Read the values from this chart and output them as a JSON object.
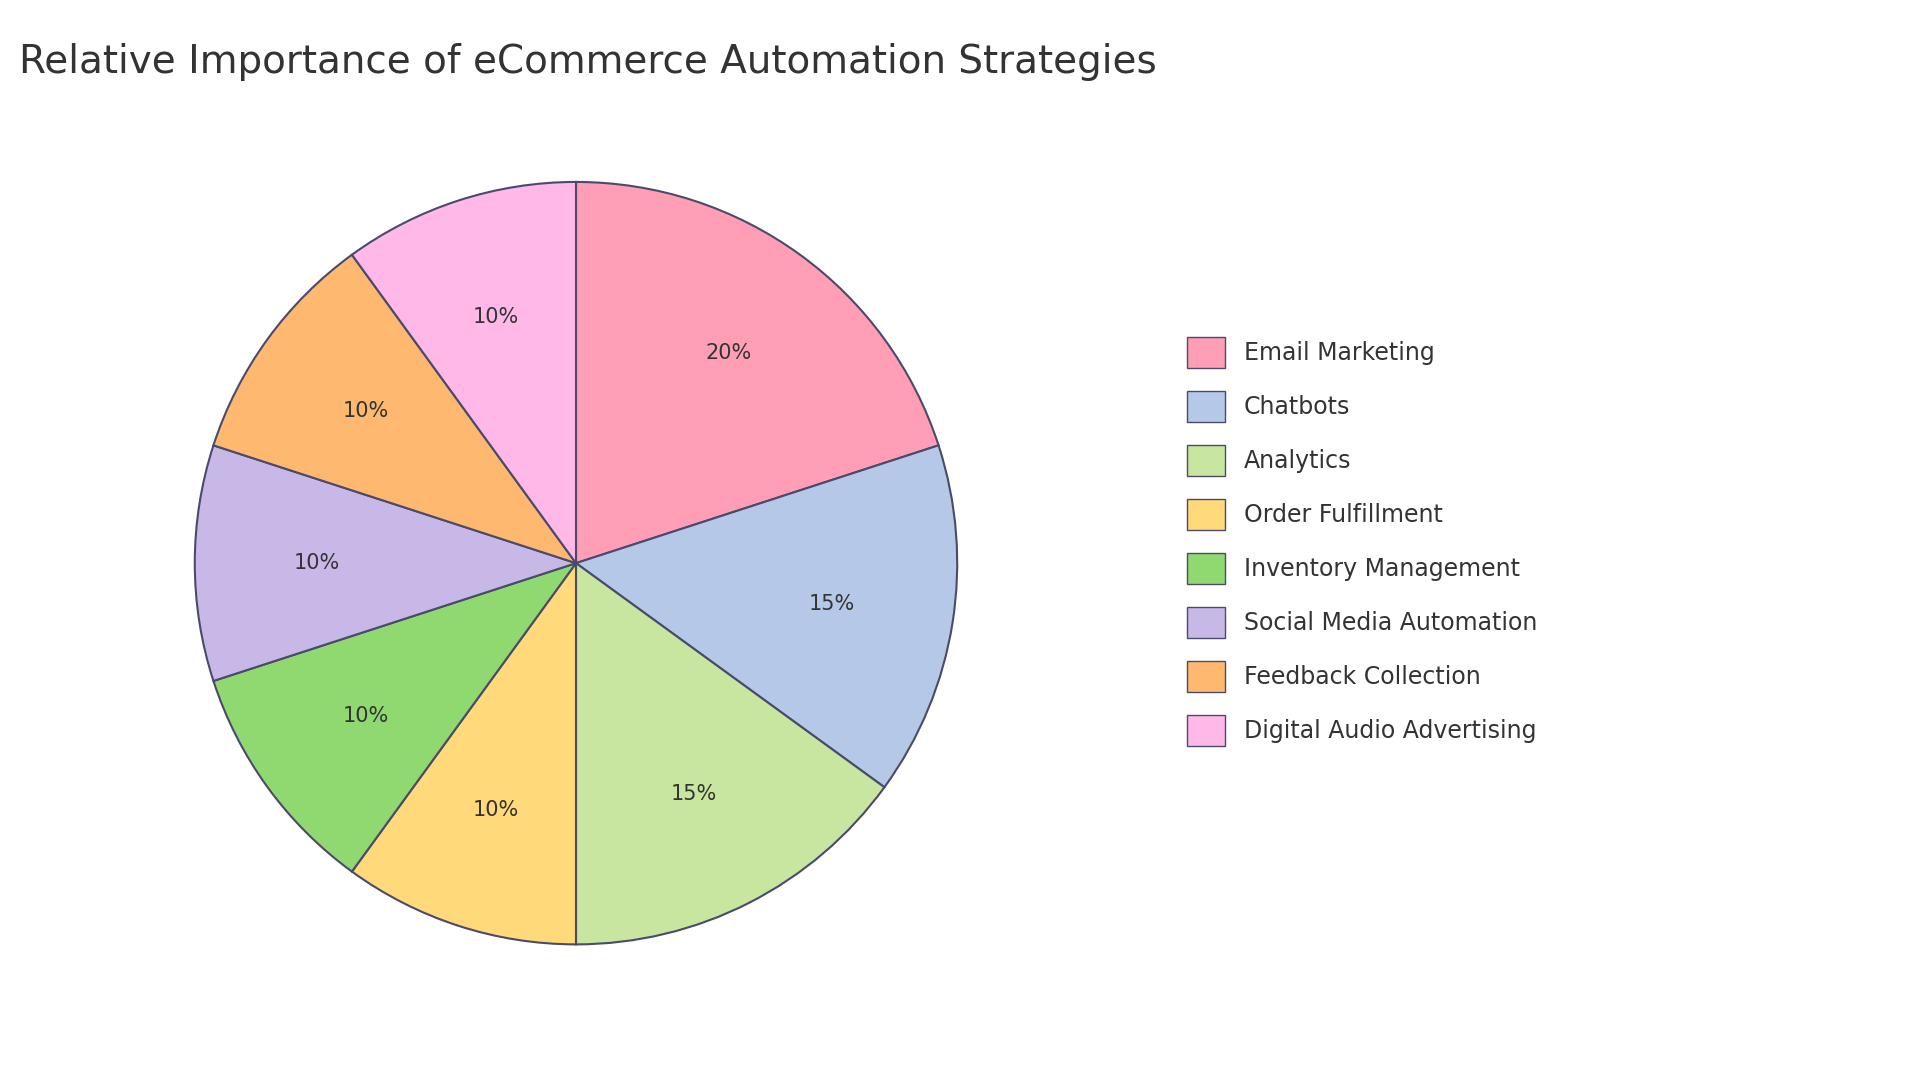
{
  "title": "Relative Importance of eCommerce Automation Strategies",
  "slices": [
    {
      "label": "Email Marketing",
      "value": 20,
      "color": "#FF9EB5"
    },
    {
      "label": "Chatbots",
      "value": 15,
      "color": "#B5C8E8"
    },
    {
      "label": "Analytics",
      "value": 15,
      "color": "#C8E6A0"
    },
    {
      "label": "Order Fulfillment",
      "value": 10,
      "color": "#FFD97A"
    },
    {
      "label": "Inventory Management",
      "value": 10,
      "color": "#90D870"
    },
    {
      "label": "Social Media Automation",
      "value": 10,
      "color": "#C8B8E8"
    },
    {
      "label": "Feedback Collection",
      "value": 10,
      "color": "#FFB870"
    },
    {
      "label": "Digital Audio Advertising",
      "value": 10,
      "color": "#FFB8E8"
    }
  ],
  "title_fontsize": 28,
  "autopct_fontsize": 15,
  "legend_fontsize": 17,
  "background_color": "#FFFFFF",
  "text_color": "#333333",
  "edge_color": "#4A4A6A",
  "edge_linewidth": 1.5,
  "startangle": 90
}
